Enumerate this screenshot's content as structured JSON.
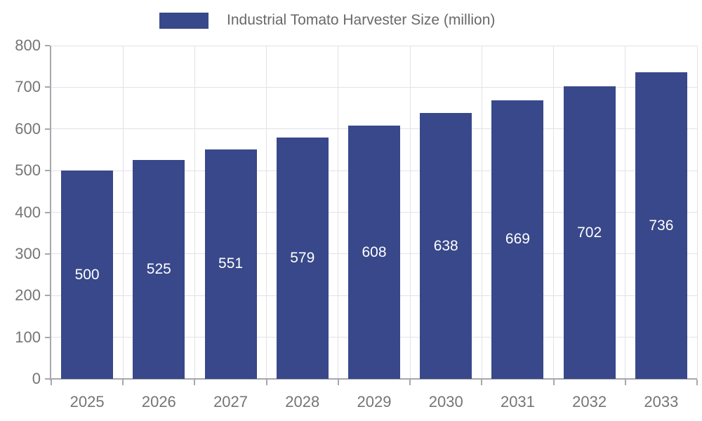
{
  "chart_data": {
    "type": "bar",
    "title": "Industrial Tomato Harvester Size (million)",
    "legend_entries": [
      "Industrial Tomato Harvester Size (million)"
    ],
    "legend_position": "top",
    "categories": [
      "2025",
      "2026",
      "2027",
      "2028",
      "2029",
      "2030",
      "2031",
      "2032",
      "2033"
    ],
    "values": [
      500,
      525,
      551,
      579,
      608,
      638,
      669,
      702,
      736
    ],
    "xlabel": "",
    "ylabel": "",
    "ylim": [
      0,
      800
    ],
    "ytick_step": 100,
    "grid": true,
    "bar_label_position": "center",
    "colors": {
      "bar": "#38488A",
      "bar_label": "#ffffff",
      "grid": "#e2e2e8",
      "axis": "#a7a7ad",
      "tick_label": "#757575",
      "legend_text": "#696969",
      "background": "#ffffff"
    }
  }
}
